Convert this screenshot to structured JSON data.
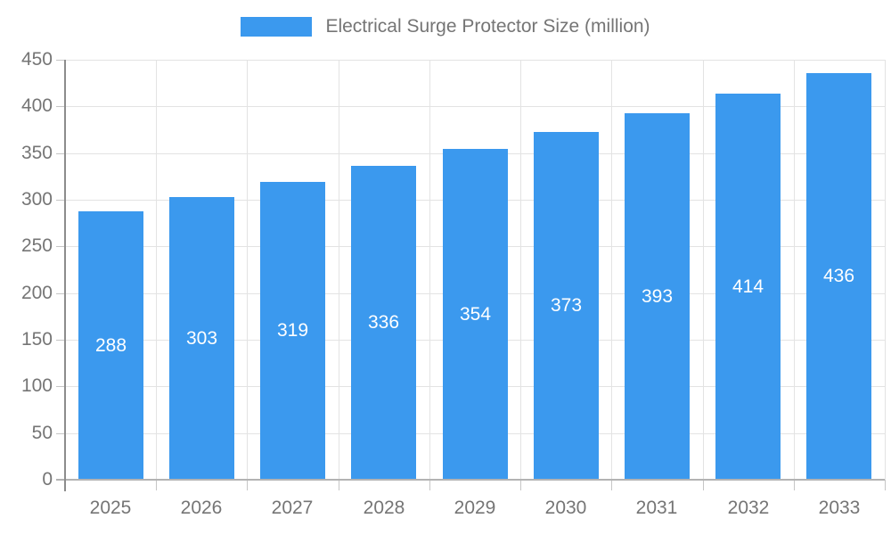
{
  "chart_data": {
    "type": "bar",
    "title": "Electrical Surge Protector Size (million)",
    "categories": [
      "2025",
      "2026",
      "2027",
      "2028",
      "2029",
      "2030",
      "2031",
      "2032",
      "2033"
    ],
    "values": [
      288,
      303,
      319,
      336,
      354,
      373,
      393,
      414,
      436
    ],
    "xlabel": "",
    "ylabel": "",
    "ylim": [
      0,
      450
    ],
    "ytick_step": 50,
    "grid": "both",
    "legend_position": "top-center",
    "bar_labels": "inside-center"
  },
  "legend": {
    "label": "Electrical Surge Protector Size (million)"
  },
  "colors": {
    "bar": "#3B99EE",
    "bar_label": "#FFFFFF",
    "grid": "#E3E3E3",
    "x_axis_line": "#B3B3B3",
    "y_axis_line": "#8C8C8C",
    "tick": "#C6C6C6",
    "tick_label": "#757575",
    "legend_text": "#757575",
    "background": "#FFFFFF"
  }
}
